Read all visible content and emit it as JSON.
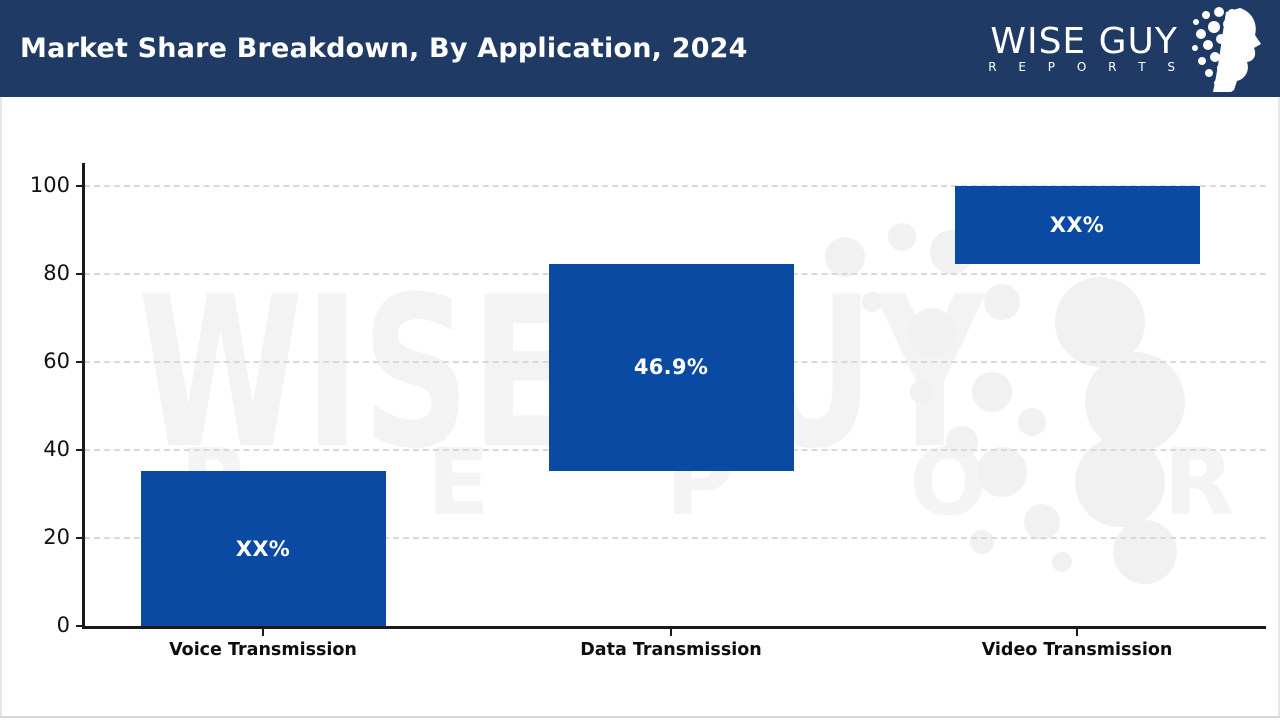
{
  "header": {
    "title": "Market Share Breakdown, By Application, 2024",
    "logo": {
      "name": "WISE GUY",
      "sub": "R E P O R T S"
    }
  },
  "watermark": {
    "line1": "WISE GUY",
    "line2": "R E P O R T S"
  },
  "colors": {
    "header_bg": "#203a66",
    "bar_fill": "#0b4aa2",
    "gridline": "#d9d9d9",
    "axis": "#1a1a1a",
    "bar_label_text": "#ffffff",
    "watermark": "#f3f3f3"
  },
  "chart_data": {
    "type": "bar",
    "subtype": "floating-stacked-segments",
    "title": "Market Share Breakdown, By Application, 2024",
    "categories": [
      "Voice Transmission",
      "Data Transmission",
      "Video Transmission"
    ],
    "segments": [
      {
        "category": "Voice Transmission",
        "from": 0,
        "to": 35.2,
        "label": "XX%"
      },
      {
        "category": "Data Transmission",
        "from": 35.3,
        "to": 82.2,
        "label": "46.9%"
      },
      {
        "category": "Video Transmission",
        "from": 82.2,
        "to": 100,
        "label": "XX%"
      }
    ],
    "yticks": [
      0,
      20,
      40,
      60,
      80,
      100
    ],
    "ylim": [
      0,
      106
    ],
    "xlabel": "",
    "ylabel": "",
    "grid": "horizontal-dashed",
    "legend": "none"
  }
}
